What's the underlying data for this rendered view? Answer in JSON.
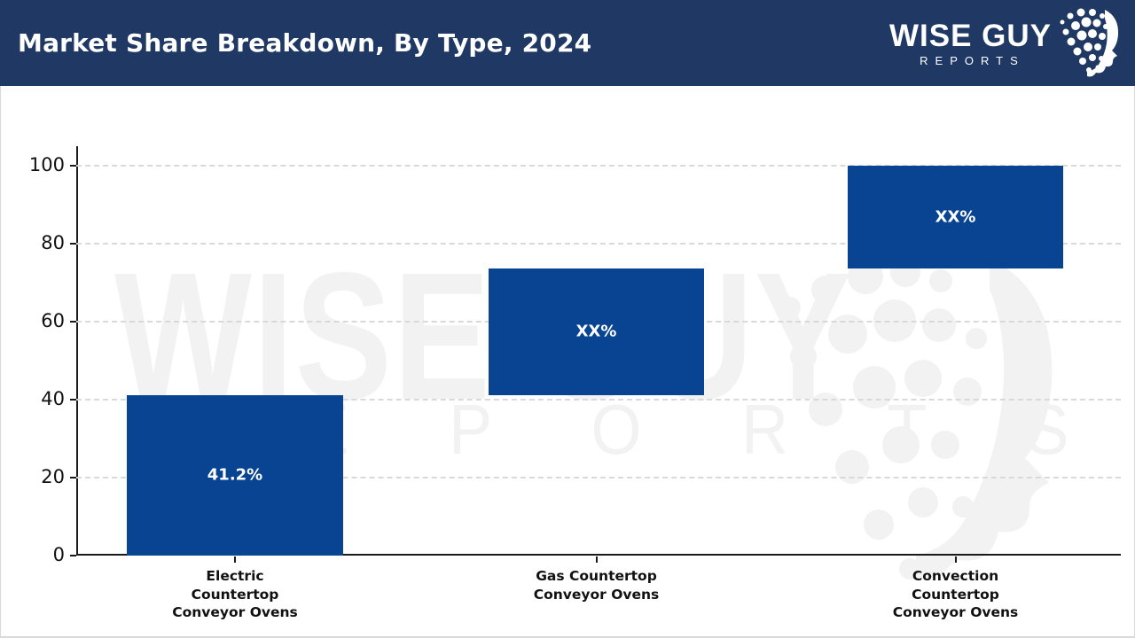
{
  "header": {
    "title": "Market Share Breakdown, By Type, 2024",
    "logo": {
      "wordmark": "WISE GUY",
      "subtext": "REPORTS"
    }
  },
  "watermark": {
    "line1": "WISE GUY",
    "line2": "REPORTS"
  },
  "chart_data": {
    "type": "bar",
    "variant": "waterfall-stacked",
    "title": "Market Share Breakdown, By Type, 2024",
    "categories": [
      "Electric Countertop Conveyor Ovens",
      "Gas Countertop Conveyor Ovens",
      "Convection Countertop Conveyor Ovens"
    ],
    "category_lines": [
      [
        "Electric",
        "Countertop",
        "Conveyor Ovens"
      ],
      [
        "Gas Countertop",
        "Conveyor Ovens"
      ],
      [
        "Convection",
        "Countertop",
        "Conveyor Ovens"
      ]
    ],
    "segments": [
      {
        "category": "Electric Countertop Conveyor Ovens",
        "start": 0,
        "end": 41.2,
        "label": "41.2%"
      },
      {
        "category": "Gas Countertop Conveyor Ovens",
        "start": 41.2,
        "end": 73.6,
        "label": "XX%"
      },
      {
        "category": "Convection Countertop Conveyor Ovens",
        "start": 73.6,
        "end": 100,
        "label": "XX%"
      }
    ],
    "yticks": [
      0,
      20,
      40,
      60,
      80,
      100
    ],
    "ylim": [
      0,
      105
    ],
    "xlabel": "",
    "ylabel": "",
    "grid": "horizontal-dashed",
    "legend": "none",
    "bar_color": "#084492",
    "bar_label_color": "#ffffff",
    "gridline_color": "#d9d9d9",
    "axis_color": "#1a1a1a",
    "header_color": "#1f3864",
    "watermark_color": "#f2f2f2"
  }
}
